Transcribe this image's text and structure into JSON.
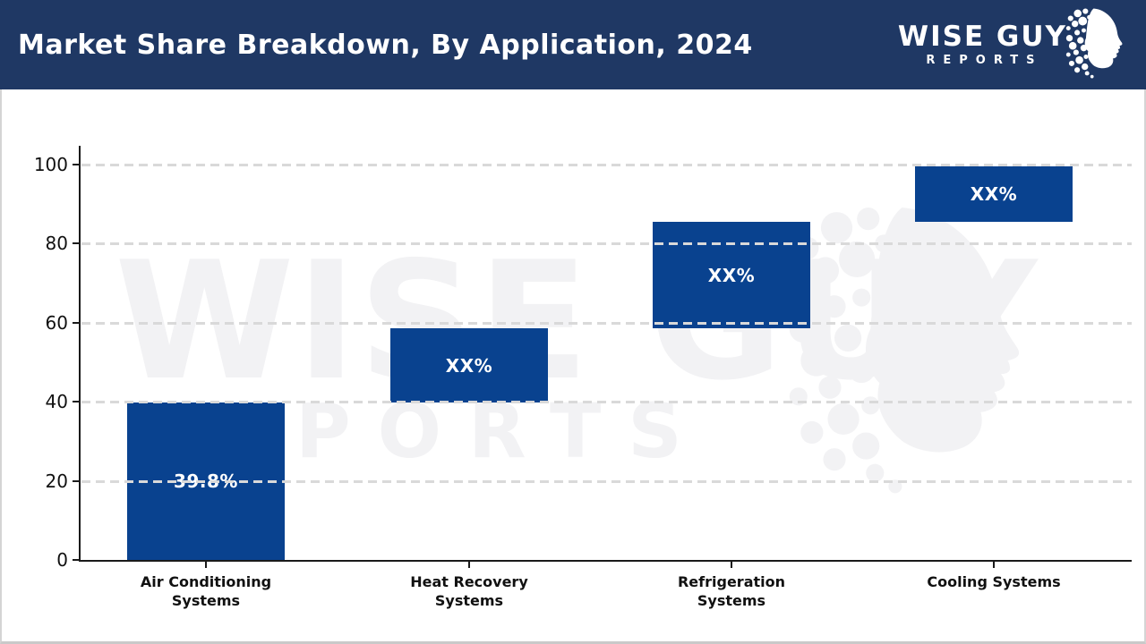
{
  "header": {
    "title": "Market Share Breakdown, By Application, 2024",
    "logo": {
      "line1": "WISE GUY",
      "line2": "REPORTS"
    }
  },
  "watermark": {
    "line1": "WISE GUY",
    "line2": "REPORTS"
  },
  "colors": {
    "header_bg": "#1f3864",
    "bar": "#09428f",
    "grid": "#d9d9d9",
    "axis": "#1a1a1a",
    "bar_label_text": "#ffffff",
    "watermark": "#f2f2f4"
  },
  "chart_data": {
    "type": "bar",
    "subtype": "waterfall",
    "title": "Market Share Breakdown, By Application, 2024",
    "categories": [
      "Air Conditioning Systems",
      "Heat Recovery Systems",
      "Refrigeration Systems",
      "Cooling Systems"
    ],
    "segments": [
      {
        "category": "Air Conditioning Systems",
        "label_lines": [
          "Air Conditioning",
          "Systems"
        ],
        "start": 0,
        "end": 39.8,
        "bar_label": "39.8%"
      },
      {
        "category": "Heat Recovery Systems",
        "label_lines": [
          "Heat Recovery",
          "Systems"
        ],
        "start": 39.8,
        "end": 58.5,
        "bar_label": "XX%"
      },
      {
        "category": "Refrigeration Systems",
        "label_lines": [
          "Refrigeration",
          "Systems"
        ],
        "start": 58.5,
        "end": 85.5,
        "bar_label": "XX%"
      },
      {
        "category": "Cooling Systems",
        "label_lines": [
          "Cooling Systems"
        ],
        "start": 85.5,
        "end": 99.5,
        "bar_label": "XX%"
      }
    ],
    "xlabel": "",
    "ylabel": "",
    "ylim": [
      0,
      100
    ],
    "yticks": [
      0,
      20,
      40,
      60,
      80,
      100
    ],
    "grid": "horizontal-dashed",
    "legend": "none"
  }
}
